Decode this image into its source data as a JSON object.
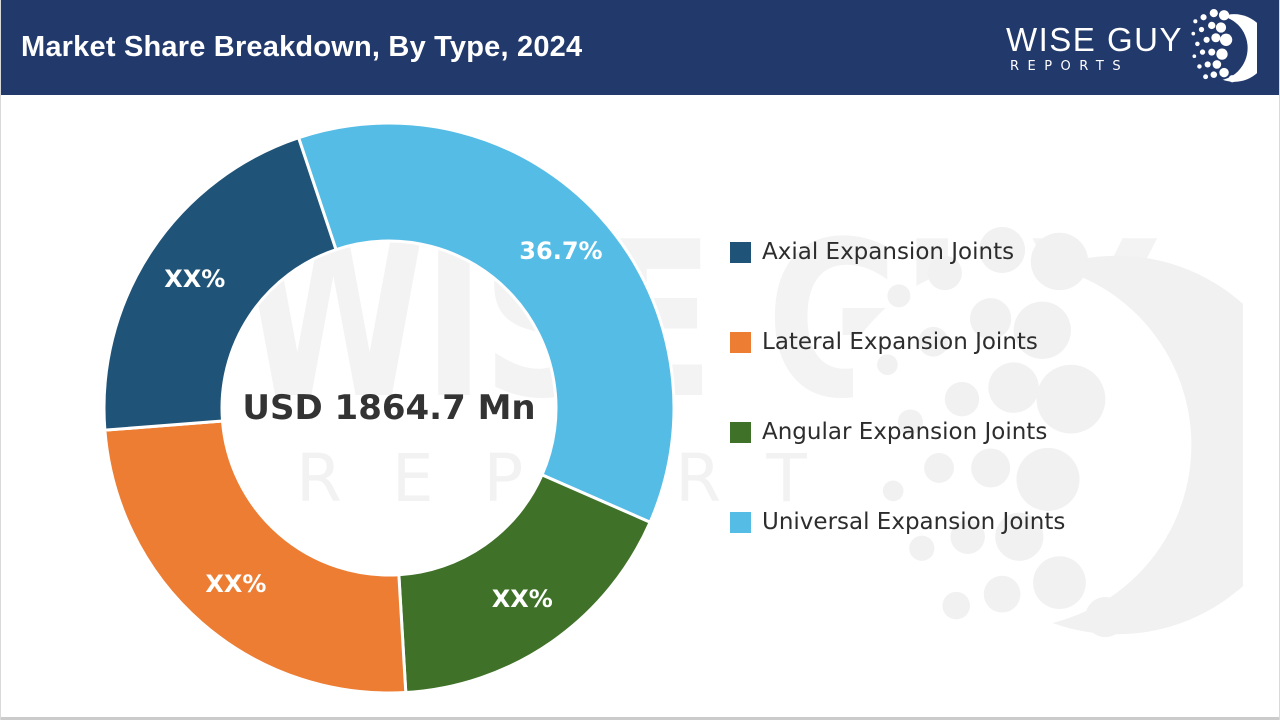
{
  "header": {
    "title": "Market Share Breakdown, By Type, 2024",
    "background_color": "#22396B",
    "logo": {
      "wordmark": "WISE GUY",
      "subtitle": "REPORTS"
    }
  },
  "watermark": {
    "wordmark": "WISE GUY",
    "subtitle": "REPORTS"
  },
  "chart_data": {
    "type": "pie",
    "subtype": "donut",
    "title": "Market Share Breakdown, By Type, 2024",
    "center_label": "USD 1864.7 Mn",
    "start_angle_deg": -18.5,
    "legend_position": "right",
    "slices": [
      {
        "name": "Universal Expansion Joints",
        "value": 36.7,
        "label": "36.7%",
        "color": "#55BCE6"
      },
      {
        "name": "Angular Expansion Joints",
        "value": 17.5,
        "label": "XX%",
        "color": "#3F7128"
      },
      {
        "name": "Lateral Expansion Joints",
        "value": 24.7,
        "label": "XX%",
        "color": "#EC7D33"
      },
      {
        "name": "Axial Expansion Joints",
        "value": 21.1,
        "label": "XX%",
        "color": "#1F5377"
      }
    ]
  },
  "legend": {
    "items": [
      {
        "label": "Axial Expansion Joints",
        "color": "#1F5377"
      },
      {
        "label": "Lateral Expansion Joints",
        "color": "#EC7D33"
      },
      {
        "label": "Angular Expansion Joints",
        "color": "#3F7128"
      },
      {
        "label": "Universal Expansion Joints",
        "color": "#55BCE6"
      }
    ]
  },
  "colors": {
    "header_navy": "#22396B",
    "slice_gap": "#FFFFFF",
    "center_text": "#333333",
    "legend_text": "#2D2D2D",
    "watermark": "#F3F3F3"
  }
}
